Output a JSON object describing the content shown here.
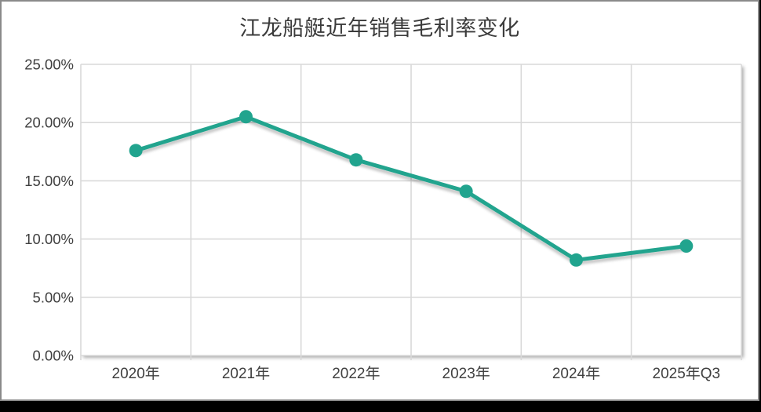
{
  "window": {
    "background_color": "#000000",
    "card_background": "#ffffff",
    "card_border_color": "#8a8a8a"
  },
  "chart_data": {
    "type": "line",
    "title": "江龙船艇近年销售毛利率变化",
    "categories": [
      "2020年",
      "2021年",
      "2022年",
      "2023年",
      "2024年",
      "2025年Q3"
    ],
    "values": [
      17.6,
      20.5,
      16.8,
      14.1,
      8.2,
      9.4
    ],
    "unit": "%",
    "xlabel": "",
    "ylabel": "",
    "ylim": [
      0,
      25
    ],
    "ytick_step": 5,
    "ytick_labels": [
      "0.00%",
      "5.00%",
      "10.00%",
      "15.00%",
      "20.00%",
      "25.00%"
    ],
    "grid": true,
    "legend": false,
    "colors": {
      "line": "#21a48e",
      "marker": "#21a48e",
      "grid": "#d9d9d9",
      "axis_text": "#404040",
      "title_text": "#3b3b3b"
    }
  }
}
